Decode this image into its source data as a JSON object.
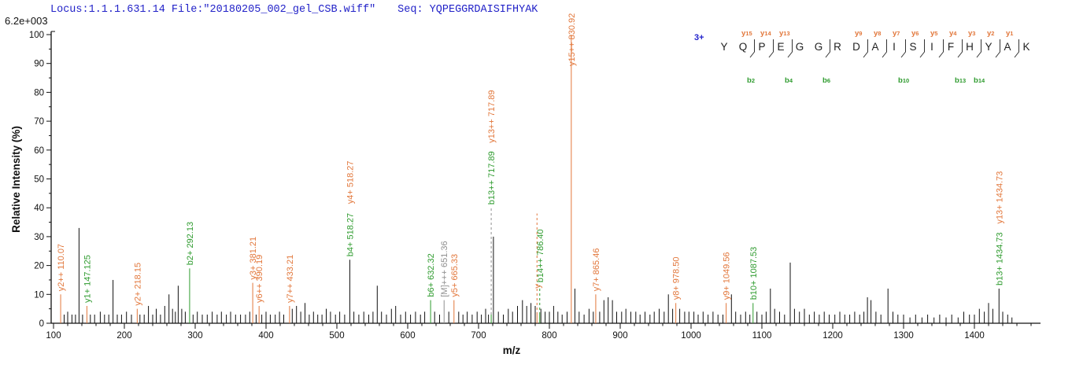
{
  "header": {
    "locus_text": "Locus:1.1.1.631.14 File:\"20180205_002_gel_CSB.wiff\"",
    "seq_label": "Seq: YQPEGGRDAISIFHYAK",
    "intensity_scale": "6.2e+003"
  },
  "colors": {
    "y_ion": "#E2773B",
    "b_ion": "#2E9B2E",
    "neutral_gray": "#8f8f8f",
    "peak_black": "#111111",
    "header_blue": "#2222c8",
    "charge_blue": "#2222cc",
    "axis_black": "#111111"
  },
  "sequence": {
    "charge": "3+",
    "residues": [
      "Y",
      "Q",
      "P",
      "E",
      "G",
      "G",
      "R",
      "D",
      "A",
      "I",
      "S",
      "I",
      "F",
      "H",
      "Y",
      "A",
      "K"
    ],
    "cleavages": [
      {
        "after": 2,
        "y": "y15",
        "b": "b2"
      },
      {
        "after": 3,
        "y": "y14"
      },
      {
        "after": 4,
        "y": "y13",
        "b": "b4"
      },
      {
        "after": 6,
        "b": "b6"
      },
      {
        "after": 8,
        "y": "y9"
      },
      {
        "after": 9,
        "y": "y8"
      },
      {
        "after": 10,
        "y": "y7",
        "b": "b10"
      },
      {
        "after": 11,
        "y": "y6"
      },
      {
        "after": 12,
        "y": "y5"
      },
      {
        "after": 13,
        "y": "y4",
        "b": "b13"
      },
      {
        "after": 14,
        "y": "y3",
        "b": "b14"
      },
      {
        "after": 15,
        "y": "y2"
      },
      {
        "after": 16,
        "y": "y1"
      }
    ]
  },
  "chart_data": {
    "type": "bar",
    "subtype": "ms2_fragmentation_spectrum",
    "title": "",
    "xlabel": "m/z",
    "ylabel": "Relative  Intensity (%)",
    "xlim": [
      90,
      1490
    ],
    "ylim": [
      0,
      100
    ],
    "x_major_ticks": [
      100,
      200,
      300,
      400,
      500,
      600,
      700,
      800,
      900,
      1000,
      1100,
      1200,
      1300,
      1400
    ],
    "x_minor_step": 20,
    "y_major_step": 10,
    "y_minor_step": 5,
    "labeled_peaks": [
      {
        "mz": 110.07,
        "intensity": 10,
        "labels": [
          {
            "t": "y2++ 110.07",
            "c": "y"
          }
        ]
      },
      {
        "mz": 147.125,
        "intensity": 6,
        "line_color": "y",
        "labels": [
          {
            "t": "y1+ 147.125",
            "c": "b"
          }
        ]
      },
      {
        "mz": 218.15,
        "intensity": 5,
        "labels": [
          {
            "t": "y2+ 218.15",
            "c": "y"
          }
        ]
      },
      {
        "mz": 292.13,
        "intensity": 19,
        "labels": [
          {
            "t": "b2+ 292.13",
            "c": "b"
          }
        ]
      },
      {
        "mz": 381.21,
        "intensity": 14,
        "labels": [
          {
            "t": "y3+ 381.21",
            "c": "y"
          }
        ]
      },
      {
        "mz": 390.19,
        "intensity": 6,
        "labels": [
          {
            "t": "y6++ 390.19",
            "c": "y"
          }
        ]
      },
      {
        "mz": 433.21,
        "intensity": 6,
        "labels": [
          {
            "t": "y7++ 433.21",
            "c": "y"
          }
        ]
      },
      {
        "mz": 518.27,
        "intensity": 22,
        "line_color": "k",
        "labels": [
          {
            "t": "b4+ 518.27",
            "c": "b"
          },
          {
            "t": "y4+ 518.27",
            "c": "y"
          }
        ]
      },
      {
        "mz": 632.32,
        "intensity": 8,
        "labels": [
          {
            "t": "b6+ 632.32",
            "c": "b"
          }
        ]
      },
      {
        "mz": 651.36,
        "intensity": 8,
        "line_color": "gray",
        "labels": [
          {
            "t": "[M]+++ 651.36",
            "c": "gray"
          }
        ]
      },
      {
        "mz": 665.33,
        "intensity": 8,
        "labels": [
          {
            "t": "y5+ 665.33",
            "c": "y"
          }
        ]
      },
      {
        "mz": 717.89,
        "intensity": 3,
        "leader": {
          "type": "dashed",
          "color": "gray",
          "top": 40
        },
        "labels_start": 40,
        "labels": [
          {
            "t": "b13++ 717.89",
            "c": "b"
          },
          {
            "t": "y13++ 717.89",
            "c": "y"
          }
        ]
      },
      {
        "mz": 782.5,
        "intensity": 3,
        "leader": {
          "type": "dashed",
          "color": "y",
          "top": 38
        },
        "labels_start": 11,
        "labels": [
          {
            "t": "y",
            "c": "y"
          }
        ]
      },
      {
        "mz": 786.4,
        "intensity": 3,
        "leader": {
          "type": "dashed",
          "color": "b",
          "top": 13
        },
        "labels_start": 13,
        "labels": [
          {
            "t": "b14++ 786.40",
            "c": "b"
          }
        ]
      },
      {
        "mz": 830.92,
        "intensity": 100,
        "labels_start": 88,
        "labels": [
          {
            "t": "y15++ 830.92",
            "c": "y"
          }
        ]
      },
      {
        "mz": 865.46,
        "intensity": 10,
        "labels": [
          {
            "t": "y7+ 865.46",
            "c": "y"
          }
        ]
      },
      {
        "mz": 978.5,
        "intensity": 7,
        "labels": [
          {
            "t": "y8+ 978.50",
            "c": "y"
          }
        ]
      },
      {
        "mz": 1049.56,
        "intensity": 7,
        "labels": [
          {
            "t": "y9+ 1049.56",
            "c": "y"
          }
        ]
      },
      {
        "mz": 1087.53,
        "intensity": 7,
        "labels": [
          {
            "t": "b10+ 1087.53",
            "c": "b"
          }
        ]
      },
      {
        "mz": 1434.73,
        "intensity": 12,
        "line_color": "k",
        "labels": [
          {
            "t": "b13+ 1434.73",
            "c": "b"
          },
          {
            "t": "y13+ 1434.73",
            "c": "y"
          }
        ]
      }
    ],
    "peaks": [
      [
        115,
        3
      ],
      [
        120,
        4
      ],
      [
        126,
        3
      ],
      [
        131,
        3
      ],
      [
        136,
        33
      ],
      [
        141,
        3
      ],
      [
        152,
        3
      ],
      [
        158,
        3
      ],
      [
        166,
        4
      ],
      [
        172,
        3
      ],
      [
        178,
        3
      ],
      [
        184,
        15
      ],
      [
        190,
        3
      ],
      [
        196,
        3
      ],
      [
        203,
        4
      ],
      [
        210,
        3
      ],
      [
        222,
        3
      ],
      [
        228,
        3
      ],
      [
        234,
        6
      ],
      [
        240,
        3
      ],
      [
        245,
        5
      ],
      [
        251,
        3
      ],
      [
        257,
        6
      ],
      [
        263,
        10
      ],
      [
        268,
        5
      ],
      [
        272,
        4
      ],
      [
        276,
        13
      ],
      [
        281,
        5
      ],
      [
        286,
        4
      ],
      [
        297,
        3
      ],
      [
        303,
        4
      ],
      [
        310,
        3
      ],
      [
        317,
        3
      ],
      [
        324,
        4
      ],
      [
        331,
        3
      ],
      [
        337,
        4
      ],
      [
        344,
        3
      ],
      [
        350,
        4
      ],
      [
        357,
        3
      ],
      [
        364,
        3
      ],
      [
        371,
        3
      ],
      [
        377,
        4
      ],
      [
        386,
        3
      ],
      [
        394,
        3
      ],
      [
        400,
        4
      ],
      [
        406,
        3
      ],
      [
        413,
        3
      ],
      [
        419,
        4
      ],
      [
        425,
        3
      ],
      [
        437,
        5
      ],
      [
        443,
        6
      ],
      [
        449,
        4
      ],
      [
        455,
        7
      ],
      [
        461,
        3
      ],
      [
        467,
        4
      ],
      [
        473,
        3
      ],
      [
        479,
        3
      ],
      [
        485,
        5
      ],
      [
        491,
        4
      ],
      [
        498,
        3
      ],
      [
        504,
        4
      ],
      [
        511,
        3
      ],
      [
        524,
        4
      ],
      [
        531,
        3
      ],
      [
        538,
        4
      ],
      [
        545,
        3
      ],
      [
        551,
        4
      ],
      [
        557,
        13
      ],
      [
        563,
        4
      ],
      [
        570,
        3
      ],
      [
        577,
        5
      ],
      [
        583,
        6
      ],
      [
        590,
        3
      ],
      [
        597,
        4
      ],
      [
        604,
        3
      ],
      [
        611,
        4
      ],
      [
        618,
        3
      ],
      [
        624,
        4
      ],
      [
        638,
        4
      ],
      [
        645,
        3
      ],
      [
        658,
        4
      ],
      [
        672,
        4
      ],
      [
        678,
        3
      ],
      [
        684,
        4
      ],
      [
        691,
        3
      ],
      [
        698,
        4
      ],
      [
        704,
        3
      ],
      [
        710,
        5
      ],
      [
        714,
        3
      ],
      [
        721,
        30
      ],
      [
        728,
        4
      ],
      [
        735,
        3
      ],
      [
        742,
        5
      ],
      [
        748,
        4
      ],
      [
        755,
        6
      ],
      [
        762,
        8
      ],
      [
        768,
        6
      ],
      [
        774,
        7
      ],
      [
        780,
        6
      ],
      [
        788,
        5
      ],
      [
        794,
        4
      ],
      [
        800,
        4
      ],
      [
        806,
        6
      ],
      [
        812,
        4
      ],
      [
        818,
        3
      ],
      [
        825,
        4
      ],
      [
        836,
        12
      ],
      [
        842,
        4
      ],
      [
        849,
        3
      ],
      [
        856,
        5
      ],
      [
        862,
        4
      ],
      [
        871,
        4
      ],
      [
        877,
        8
      ],
      [
        883,
        9
      ],
      [
        889,
        8
      ],
      [
        895,
        4
      ],
      [
        902,
        4
      ],
      [
        908,
        5
      ],
      [
        915,
        4
      ],
      [
        922,
        4
      ],
      [
        928,
        3
      ],
      [
        935,
        4
      ],
      [
        942,
        3
      ],
      [
        948,
        4
      ],
      [
        955,
        5
      ],
      [
        962,
        4
      ],
      [
        968,
        10
      ],
      [
        974,
        5
      ],
      [
        984,
        5
      ],
      [
        991,
        4
      ],
      [
        997,
        4
      ],
      [
        1004,
        4
      ],
      [
        1010,
        3
      ],
      [
        1017,
        4
      ],
      [
        1024,
        3
      ],
      [
        1031,
        4
      ],
      [
        1038,
        3
      ],
      [
        1045,
        3
      ],
      [
        1057,
        10
      ],
      [
        1063,
        4
      ],
      [
        1070,
        3
      ],
      [
        1077,
        4
      ],
      [
        1083,
        3
      ],
      [
        1093,
        4
      ],
      [
        1100,
        3
      ],
      [
        1106,
        4
      ],
      [
        1112,
        12
      ],
      [
        1118,
        5
      ],
      [
        1125,
        4
      ],
      [
        1132,
        3
      ],
      [
        1140,
        21
      ],
      [
        1146,
        5
      ],
      [
        1153,
        4
      ],
      [
        1160,
        5
      ],
      [
        1167,
        3
      ],
      [
        1174,
        4
      ],
      [
        1181,
        3
      ],
      [
        1188,
        4
      ],
      [
        1195,
        3
      ],
      [
        1203,
        3
      ],
      [
        1210,
        4
      ],
      [
        1217,
        3
      ],
      [
        1224,
        3
      ],
      [
        1231,
        4
      ],
      [
        1238,
        3
      ],
      [
        1244,
        4
      ],
      [
        1249,
        9
      ],
      [
        1254,
        8
      ],
      [
        1261,
        4
      ],
      [
        1268,
        3
      ],
      [
        1278,
        12
      ],
      [
        1285,
        4
      ],
      [
        1292,
        3
      ],
      [
        1300,
        3
      ],
      [
        1309,
        2
      ],
      [
        1317,
        3
      ],
      [
        1326,
        2
      ],
      [
        1334,
        3
      ],
      [
        1343,
        2
      ],
      [
        1351,
        3
      ],
      [
        1360,
        2
      ],
      [
        1368,
        3
      ],
      [
        1377,
        2
      ],
      [
        1385,
        4
      ],
      [
        1393,
        3
      ],
      [
        1400,
        3
      ],
      [
        1407,
        5
      ],
      [
        1414,
        4
      ],
      [
        1420,
        7
      ],
      [
        1426,
        5
      ],
      [
        1440,
        4
      ],
      [
        1447,
        3
      ],
      [
        1453,
        2
      ]
    ]
  }
}
